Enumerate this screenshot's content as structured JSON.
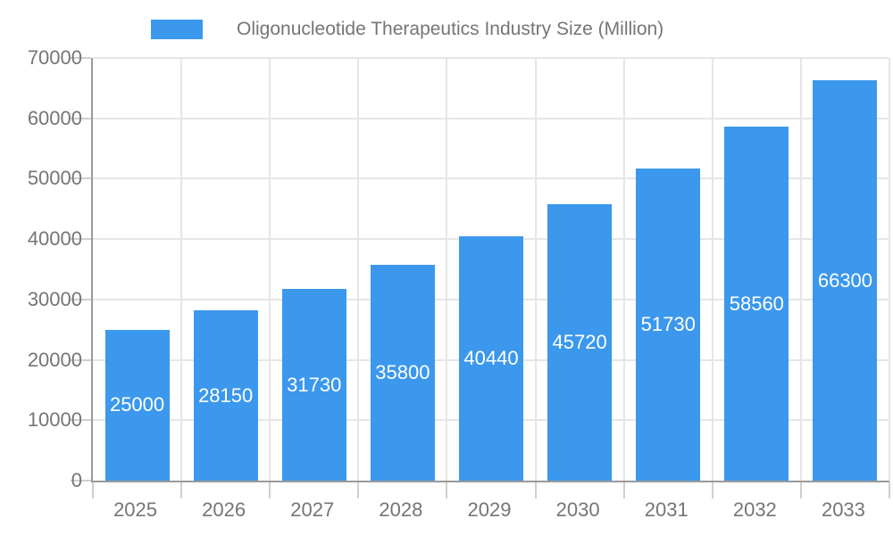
{
  "chart_data": {
    "type": "bar",
    "title": "Oligonucleotide Therapeutics Industry Size (Million)",
    "categories": [
      "2025",
      "2026",
      "2027",
      "2028",
      "2029",
      "2030",
      "2031",
      "2032",
      "2033"
    ],
    "values": [
      25000,
      28150,
      31730,
      35800,
      40440,
      45720,
      51730,
      58560,
      66300
    ],
    "xlabel": "",
    "ylabel": "",
    "ylim": [
      0,
      70000
    ],
    "yticks": [
      0,
      10000,
      20000,
      30000,
      40000,
      50000,
      60000,
      70000
    ],
    "grid": true,
    "legend_position": "top",
    "value_labels": "inside-center-white",
    "colors": {
      "bar": "#3b98ec",
      "value_label": "#ffffff",
      "axis_text": "#757575",
      "grid": "#e6e6e6",
      "axis_line": "#9a9a9a",
      "tick": "#cfcfcf",
      "background": "#ffffff"
    }
  }
}
